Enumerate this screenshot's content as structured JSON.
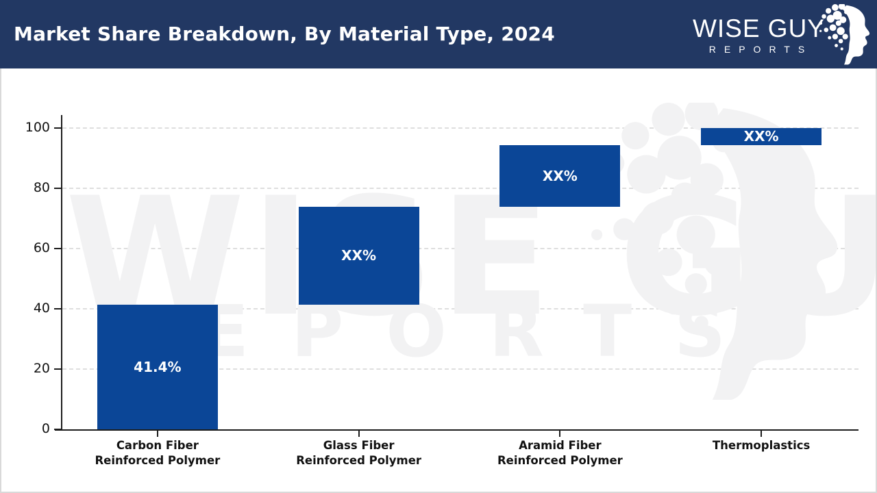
{
  "header": {
    "title": "Market Share Breakdown, By Material Type, 2024",
    "bg_color": "#223863",
    "logo": {
      "line1": "WISE GUY",
      "line2": "REPORTS"
    }
  },
  "watermark": {
    "line1": "WISE GUY",
    "line2": "REPORTS",
    "color": "#f2f2f3"
  },
  "chart_data": {
    "type": "bar",
    "subtype": "waterfall",
    "title": "Market Share Breakdown, By Material Type, 2024",
    "categories": [
      [
        "Carbon Fiber",
        "Reinforced Polymer"
      ],
      [
        "Glass Fiber",
        "Reinforced Polymer"
      ],
      [
        "Aramid Fiber",
        "Reinforced Polymer"
      ],
      [
        "Thermoplastics"
      ]
    ],
    "series": [
      {
        "name": "Market Share (%)",
        "segments": [
          {
            "base": 0,
            "top": 41.4,
            "size": 41.4,
            "label": "41.4%"
          },
          {
            "base": 41.4,
            "top": 73.9,
            "size": 32.5,
            "label": "XX%"
          },
          {
            "base": 73.9,
            "top": 94.4,
            "size": 20.5,
            "label": "XX%"
          },
          {
            "base": 94.4,
            "top": 100,
            "size": 5.6,
            "label": "XX%"
          }
        ]
      }
    ],
    "yticks": [
      0,
      20,
      40,
      60,
      80,
      100
    ],
    "ylim": [
      0,
      104.3
    ],
    "xlabel": "",
    "ylabel": "",
    "grid": true,
    "grid_style": "dashed",
    "legend": "none",
    "bar_color": "#0b4697",
    "value_label_color": "#ffffff",
    "axis_color": "#1c1c1c",
    "gridline_color": "#dedede"
  }
}
